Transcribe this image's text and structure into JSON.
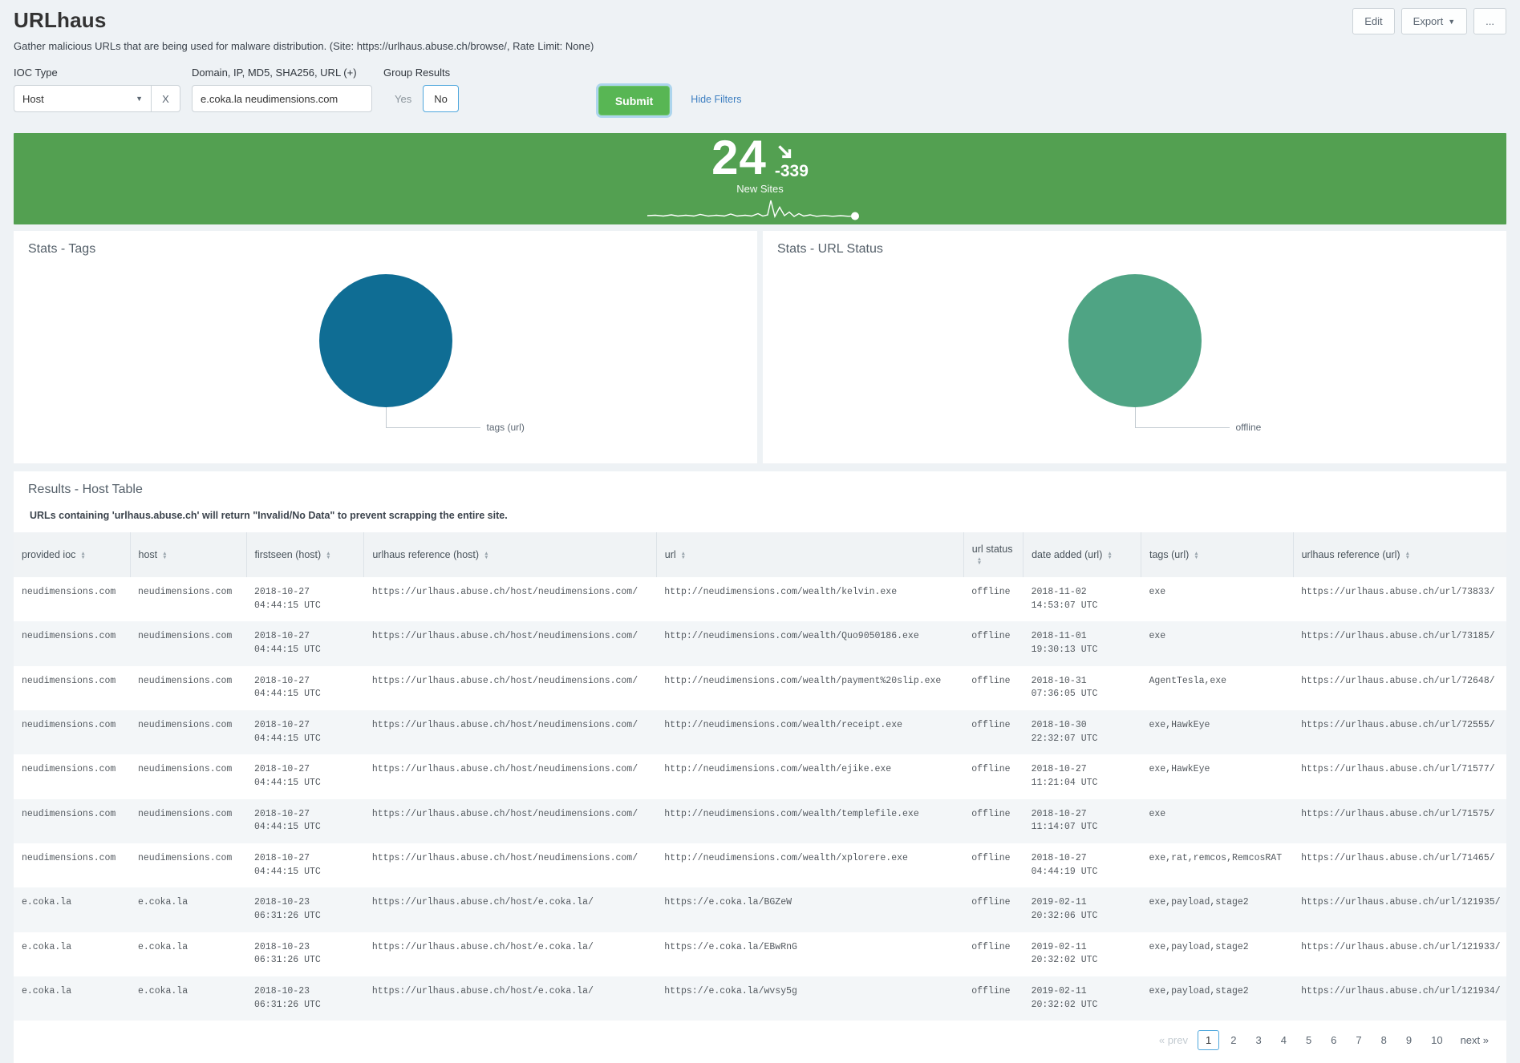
{
  "header": {
    "title": "URLhaus",
    "description": "Gather malicious URLs that are being used for malware distribution. (Site: https://urlhaus.abuse.ch/browse/, Rate Limit: None)",
    "actions": {
      "edit": "Edit",
      "export": "Export",
      "more": "..."
    }
  },
  "filters": {
    "ioc_type": {
      "label": "IOC Type",
      "value": "Host",
      "clear": "X"
    },
    "query": {
      "label": "Domain, IP, MD5, SHA256, URL (+)",
      "value": "e.coka.la neudimensions.com"
    },
    "group_results": {
      "label": "Group Results",
      "options": [
        "Yes",
        "No"
      ],
      "selected": "No"
    },
    "submit_label": "Submit",
    "hide_filters_label": "Hide Filters"
  },
  "single_value": {
    "value": "24",
    "delta": "-339",
    "trend_direction": "down",
    "label": "New Sites",
    "bg_color": "#53a051"
  },
  "chart_data": [
    {
      "type": "pie",
      "title": "Stats - Tags",
      "legend_position": "callout-bottom",
      "slices": [
        {
          "label": "tags (url)",
          "value": 100,
          "color": "#0f6d94"
        }
      ]
    },
    {
      "type": "pie",
      "title": "Stats - URL Status",
      "legend_position": "callout-bottom",
      "slices": [
        {
          "label": "offline",
          "value": 100,
          "color": "#4fa484"
        }
      ]
    }
  ],
  "results": {
    "title": "Results - Host Table",
    "note": "URLs containing 'urlhaus.abuse.ch' will return \"Invalid/No Data\" to prevent scrapping the entire site.",
    "columns": [
      {
        "key": "provided_ioc",
        "label": "provided ioc"
      },
      {
        "key": "host",
        "label": "host"
      },
      {
        "key": "firstseen",
        "label": "firstseen (host)"
      },
      {
        "key": "urlhaus_ref_host",
        "label": "urlhaus reference (host)"
      },
      {
        "key": "url",
        "label": "url"
      },
      {
        "key": "url_status",
        "label": "url status"
      },
      {
        "key": "date_added",
        "label": "date added (url)"
      },
      {
        "key": "tags",
        "label": "tags (url)"
      },
      {
        "key": "urlhaus_ref_url",
        "label": "urlhaus reference (url)"
      }
    ],
    "rows": [
      {
        "provided_ioc": "neudimensions.com",
        "host": "neudimensions.com",
        "firstseen": "2018-10-27\n04:44:15 UTC",
        "urlhaus_ref_host": "https://urlhaus.abuse.ch/host/neudimensions.com/",
        "url": "http://neudimensions.com/wealth/kelvin.exe",
        "url_status": "offline",
        "date_added": "2018-11-02\n14:53:07 UTC",
        "tags": "exe",
        "urlhaus_ref_url": "https://urlhaus.abuse.ch/url/73833/"
      },
      {
        "provided_ioc": "neudimensions.com",
        "host": "neudimensions.com",
        "firstseen": "2018-10-27\n04:44:15 UTC",
        "urlhaus_ref_host": "https://urlhaus.abuse.ch/host/neudimensions.com/",
        "url": "http://neudimensions.com/wealth/Quo9050186.exe",
        "url_status": "offline",
        "date_added": "2018-11-01\n19:30:13 UTC",
        "tags": "exe",
        "urlhaus_ref_url": "https://urlhaus.abuse.ch/url/73185/"
      },
      {
        "provided_ioc": "neudimensions.com",
        "host": "neudimensions.com",
        "firstseen": "2018-10-27\n04:44:15 UTC",
        "urlhaus_ref_host": "https://urlhaus.abuse.ch/host/neudimensions.com/",
        "url": "http://neudimensions.com/wealth/payment%20slip.exe",
        "url_status": "offline",
        "date_added": "2018-10-31\n07:36:05 UTC",
        "tags": "AgentTesla,exe",
        "urlhaus_ref_url": "https://urlhaus.abuse.ch/url/72648/"
      },
      {
        "provided_ioc": "neudimensions.com",
        "host": "neudimensions.com",
        "firstseen": "2018-10-27\n04:44:15 UTC",
        "urlhaus_ref_host": "https://urlhaus.abuse.ch/host/neudimensions.com/",
        "url": "http://neudimensions.com/wealth/receipt.exe",
        "url_status": "offline",
        "date_added": "2018-10-30\n22:32:07 UTC",
        "tags": "exe,HawkEye",
        "urlhaus_ref_url": "https://urlhaus.abuse.ch/url/72555/"
      },
      {
        "provided_ioc": "neudimensions.com",
        "host": "neudimensions.com",
        "firstseen": "2018-10-27\n04:44:15 UTC",
        "urlhaus_ref_host": "https://urlhaus.abuse.ch/host/neudimensions.com/",
        "url": "http://neudimensions.com/wealth/ejike.exe",
        "url_status": "offline",
        "date_added": "2018-10-27\n11:21:04 UTC",
        "tags": "exe,HawkEye",
        "urlhaus_ref_url": "https://urlhaus.abuse.ch/url/71577/"
      },
      {
        "provided_ioc": "neudimensions.com",
        "host": "neudimensions.com",
        "firstseen": "2018-10-27\n04:44:15 UTC",
        "urlhaus_ref_host": "https://urlhaus.abuse.ch/host/neudimensions.com/",
        "url": "http://neudimensions.com/wealth/templefile.exe",
        "url_status": "offline",
        "date_added": "2018-10-27\n11:14:07 UTC",
        "tags": "exe",
        "urlhaus_ref_url": "https://urlhaus.abuse.ch/url/71575/"
      },
      {
        "provided_ioc": "neudimensions.com",
        "host": "neudimensions.com",
        "firstseen": "2018-10-27\n04:44:15 UTC",
        "urlhaus_ref_host": "https://urlhaus.abuse.ch/host/neudimensions.com/",
        "url": "http://neudimensions.com/wealth/xplorere.exe",
        "url_status": "offline",
        "date_added": "2018-10-27\n04:44:19 UTC",
        "tags": "exe,rat,remcos,RemcosRAT",
        "urlhaus_ref_url": "https://urlhaus.abuse.ch/url/71465/"
      },
      {
        "provided_ioc": "e.coka.la",
        "host": "e.coka.la",
        "firstseen": "2018-10-23\n06:31:26 UTC",
        "urlhaus_ref_host": "https://urlhaus.abuse.ch/host/e.coka.la/",
        "url": "https://e.coka.la/BGZeW",
        "url_status": "offline",
        "date_added": "2019-02-11\n20:32:06 UTC",
        "tags": "exe,payload,stage2",
        "urlhaus_ref_url": "https://urlhaus.abuse.ch/url/121935/"
      },
      {
        "provided_ioc": "e.coka.la",
        "host": "e.coka.la",
        "firstseen": "2018-10-23\n06:31:26 UTC",
        "urlhaus_ref_host": "https://urlhaus.abuse.ch/host/e.coka.la/",
        "url": "https://e.coka.la/EBwRnG",
        "url_status": "offline",
        "date_added": "2019-02-11\n20:32:02 UTC",
        "tags": "exe,payload,stage2",
        "urlhaus_ref_url": "https://urlhaus.abuse.ch/url/121933/"
      },
      {
        "provided_ioc": "e.coka.la",
        "host": "e.coka.la",
        "firstseen": "2018-10-23\n06:31:26 UTC",
        "urlhaus_ref_host": "https://urlhaus.abuse.ch/host/e.coka.la/",
        "url": "https://e.coka.la/wvsy5g",
        "url_status": "offline",
        "date_added": "2019-02-11\n20:32:02 UTC",
        "tags": "exe,payload,stage2",
        "urlhaus_ref_url": "https://urlhaus.abuse.ch/url/121934/"
      }
    ]
  },
  "pagination": {
    "prev": "« prev",
    "pages": [
      "1",
      "2",
      "3",
      "4",
      "5",
      "6",
      "7",
      "8",
      "9",
      "10"
    ],
    "current": "1",
    "next": "next »"
  }
}
